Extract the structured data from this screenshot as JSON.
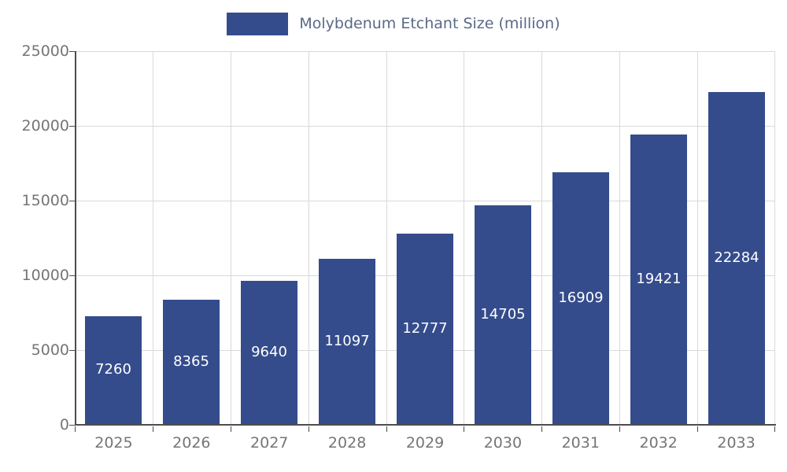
{
  "chart_data": {
    "type": "bar",
    "title": "Molybdenum Etchant Size (million)",
    "categories": [
      "2025",
      "2026",
      "2027",
      "2028",
      "2029",
      "2030",
      "2031",
      "2032",
      "2033"
    ],
    "values": [
      7260,
      8365,
      9640,
      11097,
      12777,
      14705,
      16909,
      19421,
      22284
    ],
    "xlabel": "",
    "ylabel": "",
    "ylim": [
      0,
      25000
    ],
    "yticks": [
      0,
      5000,
      10000,
      15000,
      20000,
      25000
    ],
    "grid": true,
    "legend_position": "top-center",
    "colors": {
      "bar": "#344c8c",
      "bar_value_label": "#ffffff",
      "legend_text": "#5a6987",
      "axis_text": "#757575",
      "gridline": "#d9d9d9",
      "axis_line": "#4d4d4d",
      "background": "#ffffff"
    }
  }
}
